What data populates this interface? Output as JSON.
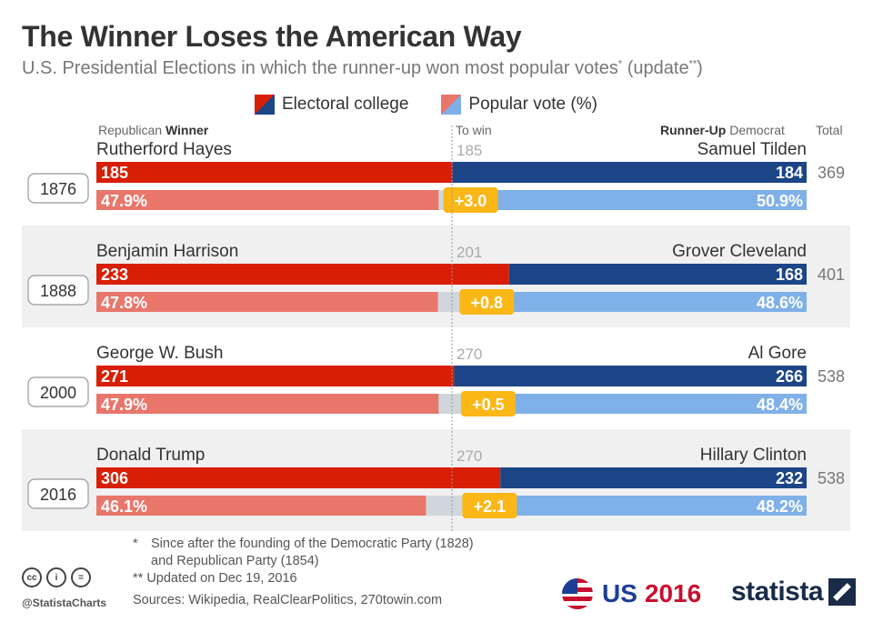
{
  "title": "The Winner Loses the American Way",
  "subtitle": "U.S. Presidential Elections in which the runner-up won most popular votes",
  "subtitle_marker": "*",
  "subtitle_update": "(update",
  "subtitle_update_marker": "**",
  "subtitle_close": ")",
  "legend": {
    "electoral": "Electoral college",
    "popular": "Popular vote (%)"
  },
  "headers": {
    "left_plain": "Republican ",
    "left_bold": "Winner",
    "center": "To win",
    "right_bold": "Runner-Up",
    "right_plain": " Democrat",
    "total": "Total"
  },
  "colors": {
    "rep_dark": "#d81e05",
    "dem_dark": "#1c4587",
    "rep_light": "#e8766a",
    "dem_light": "#7fb0e8",
    "gap": "#d0d7dc",
    "badge": "#fbb716",
    "band": "#f0f0f0"
  },
  "chart_data": {
    "type": "bar",
    "title": "The Winner Loses the American Way",
    "categories": [
      "1876",
      "1888",
      "2000",
      "2016"
    ],
    "series": [
      {
        "name": "Winner electoral votes",
        "values": [
          185,
          233,
          271,
          306
        ]
      },
      {
        "name": "Runner-up electoral votes",
        "values": [
          184,
          168,
          266,
          232
        ]
      },
      {
        "name": "Winner popular vote (%)",
        "values": [
          47.9,
          47.8,
          47.9,
          46.1
        ]
      },
      {
        "name": "Runner-up popular vote (%)",
        "values": [
          50.9,
          48.6,
          48.4,
          48.2
        ]
      }
    ],
    "rows": [
      {
        "year": "1876",
        "winner": "Rutherford Hayes",
        "runner_up": "Samuel Tilden",
        "to_win": 185,
        "win_ev": 185,
        "ru_ev": 184,
        "total": 369,
        "win_pct": 47.9,
        "ru_pct": 50.9,
        "win_pct_label": "47.9%",
        "ru_pct_label": "50.9%",
        "diff": "+3.0",
        "to_win_label": "185",
        "win_ev_label": "185",
        "ru_ev_label": "184",
        "total_label": "369"
      },
      {
        "year": "1888",
        "winner": "Benjamin Harrison",
        "runner_up": "Grover Cleveland",
        "to_win": 201,
        "win_ev": 233,
        "ru_ev": 168,
        "total": 401,
        "win_pct": 47.8,
        "ru_pct": 48.6,
        "win_pct_label": "47.8%",
        "ru_pct_label": "48.6%",
        "diff": "+0.8",
        "to_win_label": "201",
        "win_ev_label": "233",
        "ru_ev_label": "168",
        "total_label": "401"
      },
      {
        "year": "2000",
        "winner": "George W. Bush",
        "runner_up": "Al Gore",
        "to_win": 270,
        "win_ev": 271,
        "ru_ev": 266,
        "total": 538,
        "win_pct": 47.9,
        "ru_pct": 48.4,
        "win_pct_label": "47.9%",
        "ru_pct_label": "48.4%",
        "diff": "+0.5",
        "to_win_label": "270",
        "win_ev_label": "271",
        "ru_ev_label": "266",
        "total_label": "538"
      },
      {
        "year": "2016",
        "winner": "Donald Trump",
        "runner_up": "Hillary Clinton",
        "to_win": 270,
        "win_ev": 306,
        "ru_ev": 232,
        "total": 538,
        "win_pct": 46.1,
        "ru_pct": 48.2,
        "win_pct_label": "46.1%",
        "ru_pct_label": "48.2%",
        "diff": "+2.1",
        "to_win_label": "270",
        "win_ev_label": "306",
        "ru_ev_label": "232",
        "total_label": "538"
      }
    ]
  },
  "footnotes": {
    "note1_marker": "*",
    "note1_line1": "Since after the founding of the Democratic Party (1828)",
    "note1_line2": "and Republican Party (1854)",
    "note2": "** Updated on Dec 19, 2016",
    "sources": "Sources: Wikipedia, RealClearPolitics, 270towin.com"
  },
  "branding": {
    "cc1": "cc",
    "cc2": "i",
    "cc3": "=",
    "handle": "@StatistaCharts",
    "us": "US ",
    "year": "2016",
    "statista": "statista"
  }
}
